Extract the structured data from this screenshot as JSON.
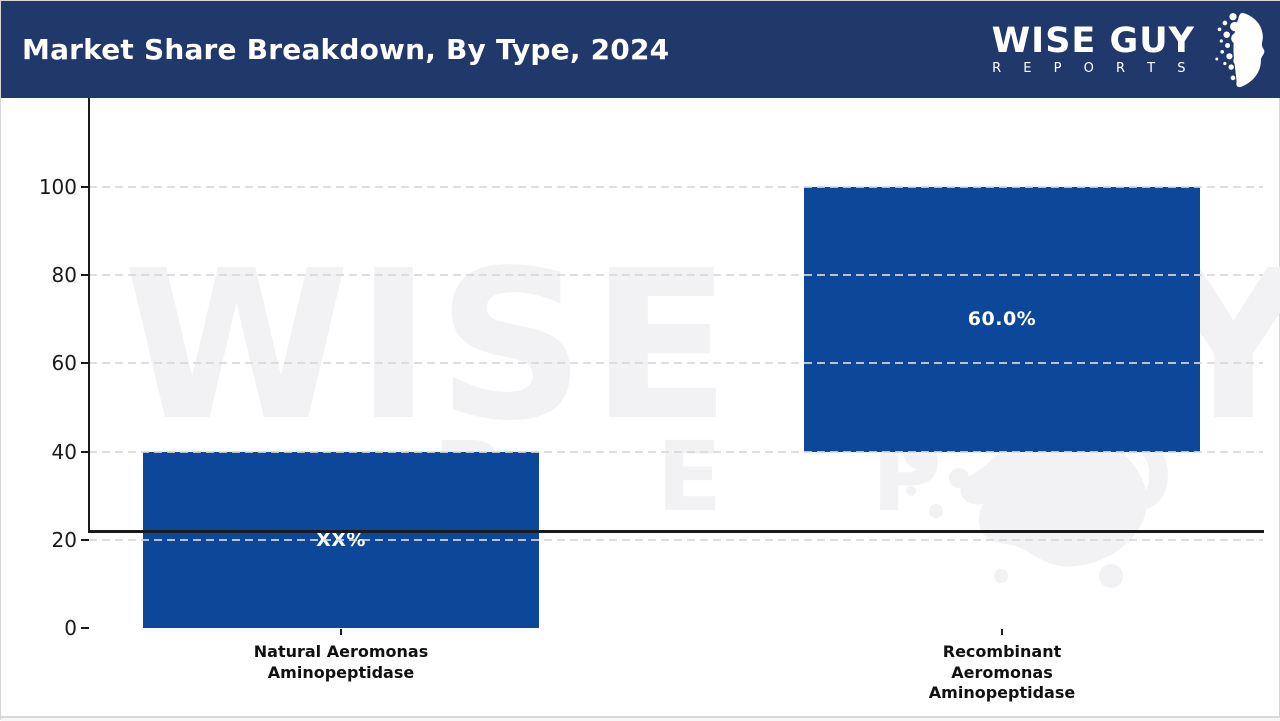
{
  "header": {
    "title": "Market Share Breakdown, By Type, 2024",
    "logo": {
      "line1": "WISE GUY",
      "line2": "R E P O R T S",
      "face_icon": "dotted-profile-face"
    }
  },
  "chart_data": {
    "type": "bar",
    "subtype": "stacked-range-segments",
    "title": "Market Share Breakdown, By Type, 2024",
    "categories": [
      "Natural Aeromonas Aminopeptidase",
      "Recombinant Aeromonas Aminopeptidase"
    ],
    "bars": [
      {
        "category_lines": [
          "Natural Aeromonas",
          "Aminopeptidase"
        ],
        "start": 0,
        "end": 40,
        "value_label": "XX%"
      },
      {
        "category_lines": [
          "Recombinant",
          "Aeromonas",
          "Aminopeptidase"
        ],
        "start": 40,
        "end": 100,
        "value_label": "60.0%"
      }
    ],
    "xlabel": "",
    "ylabel": "",
    "ylim": [
      0,
      100
    ],
    "yticks": [
      0,
      20,
      40,
      60,
      80,
      100
    ],
    "grid": "horizontal dashed",
    "legend": "none",
    "bar_color": "#0d4799"
  },
  "watermark": {
    "line1": "WISE GUY",
    "line2": "R E P O R T S"
  },
  "colors": {
    "header_navy": "#21386b",
    "bar_blue": "#0d4799",
    "grid_gray": "#d9d9d9",
    "axis_black": "#1a1a1a",
    "watermark_gray": "#f2f2f4",
    "page_border": "#d6d6d6"
  }
}
